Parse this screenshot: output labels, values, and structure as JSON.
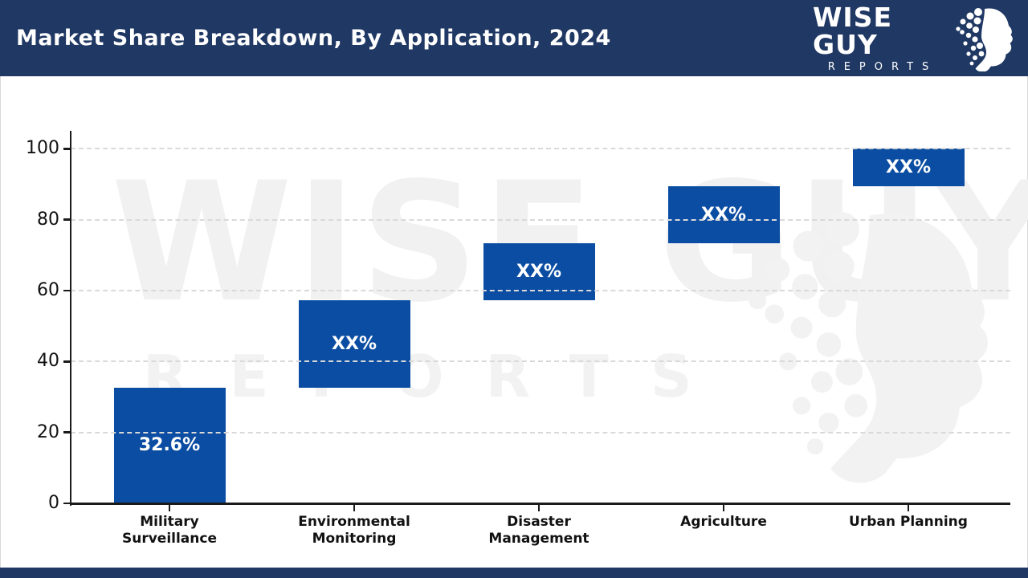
{
  "header": {
    "title": "Market Share Breakdown, By Application, 2024"
  },
  "logo": {
    "name_top": "WISE GUY",
    "name_bottom": "REPORTS",
    "head_icon": "dotted-face-profile"
  },
  "watermark": {
    "line1": "WISE GUY",
    "line2": "REPORTS",
    "head_icon": "dotted-face-profile"
  },
  "chart_data": {
    "type": "bar",
    "subtype": "waterfall-floating-bars",
    "title": "Market Share Breakdown, By Application, 2024",
    "categories": [
      "Military Surveillance",
      "Environmental Monitoring",
      "Disaster Management",
      "Agriculture",
      "Urban Planning"
    ],
    "xlabel_lines": [
      [
        "Military",
        "Surveillance"
      ],
      [
        "Environmental",
        "Monitoring"
      ],
      [
        "Disaster",
        "Management"
      ],
      [
        "Agriculture"
      ],
      [
        "Urban Planning"
      ]
    ],
    "segments": [
      {
        "category": "Military Surveillance",
        "start": 0,
        "end": 32.6,
        "label": "32.6%"
      },
      {
        "category": "Environmental Monitoring",
        "start": 32.6,
        "end": 57.2,
        "label": "XX%"
      },
      {
        "category": "Disaster Management",
        "start": 57.2,
        "end": 73.4,
        "label": "XX%"
      },
      {
        "category": "Agriculture",
        "start": 73.4,
        "end": 89.5,
        "label": "XX%"
      },
      {
        "category": "Urban Planning",
        "start": 89.5,
        "end": 100,
        "label": "XX%"
      }
    ],
    "yticks": [
      0,
      20,
      40,
      60,
      80,
      100
    ],
    "ylim": [
      0,
      105
    ],
    "xlabel": "",
    "ylabel": "",
    "legend": "none",
    "grid": "horizontal-dashed-over-bars",
    "bar_color": "#0b4da2",
    "bar_label_color": "#ffffff"
  },
  "colors": {
    "header_bg": "#203864",
    "footer_bg": "#203864",
    "bar": "#0b4da2",
    "grid": "#d9d9d9",
    "axis": "#1a1a1a",
    "watermark": "#f1f1f1"
  }
}
